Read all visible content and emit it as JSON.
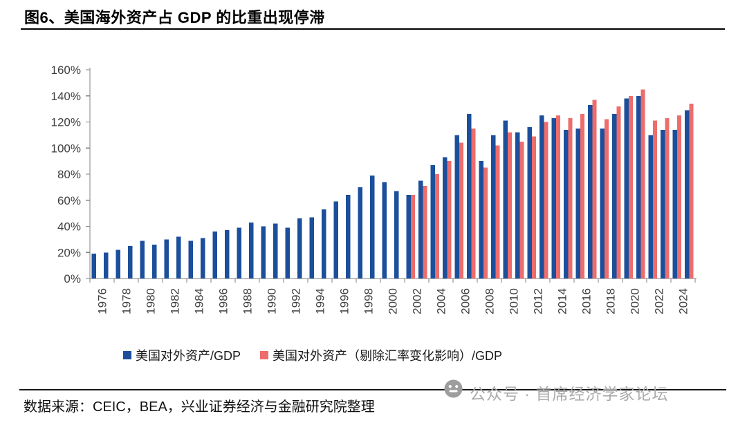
{
  "header": {
    "title": "图6、美国海外资产占 GDP 的比重出现停滞"
  },
  "footer": {
    "source_text": "数据来源：CEIC，BEA，兴业证券经济与金融研究院整理"
  },
  "watermark": {
    "icon": "chief-economist-forum-logo",
    "text": "公众号 · 首席经济学家论坛"
  },
  "chart_data": {
    "type": "bar",
    "title": "图6、美国海外资产占 GDP 的比重出现停滞",
    "xlabel": "",
    "ylabel": "",
    "unit": "%",
    "ylim": [
      0,
      160
    ],
    "ytick_step": 20,
    "ytick_labels": [
      "0%",
      "20%",
      "40%",
      "60%",
      "80%",
      "100%",
      "120%",
      "140%",
      "160%"
    ],
    "grid": false,
    "legend_position": "bottom",
    "categories": [
      1976,
      1977,
      1978,
      1979,
      1980,
      1981,
      1982,
      1983,
      1984,
      1985,
      1986,
      1987,
      1988,
      1989,
      1990,
      1991,
      1992,
      1993,
      1994,
      1995,
      1996,
      1997,
      1998,
      1999,
      2000,
      2001,
      2002,
      2003,
      2004,
      2005,
      2006,
      2007,
      2008,
      2009,
      2010,
      2011,
      2012,
      2013,
      2014,
      2015,
      2016,
      2017,
      2018,
      2019,
      2020,
      2021,
      2022,
      2023,
      2024,
      2025
    ],
    "x_tick_labels": [
      "1976",
      "1978",
      "1980",
      "1982",
      "1984",
      "1986",
      "1988",
      "1990",
      "1992",
      "1994",
      "1996",
      "1998",
      "2000",
      "2002",
      "2004",
      "2006",
      "2008",
      "2010",
      "2012",
      "2014",
      "2016",
      "2018",
      "2020",
      "2022",
      "2024"
    ],
    "series": [
      {
        "name": "美国对外资产/GDP",
        "color": "#1B4F9B",
        "values": [
          19,
          20,
          22,
          25,
          29,
          26,
          30,
          32,
          29,
          31,
          36,
          37,
          39,
          43,
          40,
          42,
          39,
          46,
          47,
          53,
          59,
          64,
          70,
          79,
          74,
          67,
          64,
          75,
          87,
          93,
          110,
          126,
          90,
          110,
          121,
          112,
          116,
          125,
          123,
          114,
          115,
          133,
          115,
          126,
          138,
          140,
          110,
          114,
          114,
          129
        ]
      },
      {
        "name": "美国对外资产（剔除汇率变化影响）/GDP",
        "color": "#ED6C6C",
        "values": [
          null,
          null,
          null,
          null,
          null,
          null,
          null,
          null,
          null,
          null,
          null,
          null,
          null,
          null,
          null,
          null,
          null,
          null,
          null,
          null,
          null,
          null,
          null,
          null,
          null,
          null,
          64,
          71,
          80,
          90,
          104,
          115,
          85,
          102,
          112,
          105,
          109,
          120,
          125,
          123,
          126,
          137,
          122,
          132,
          140,
          145,
          121,
          123,
          125,
          134
        ]
      }
    ],
    "axis_color": "#808080",
    "tick_label_color": "#3f3f3f"
  }
}
